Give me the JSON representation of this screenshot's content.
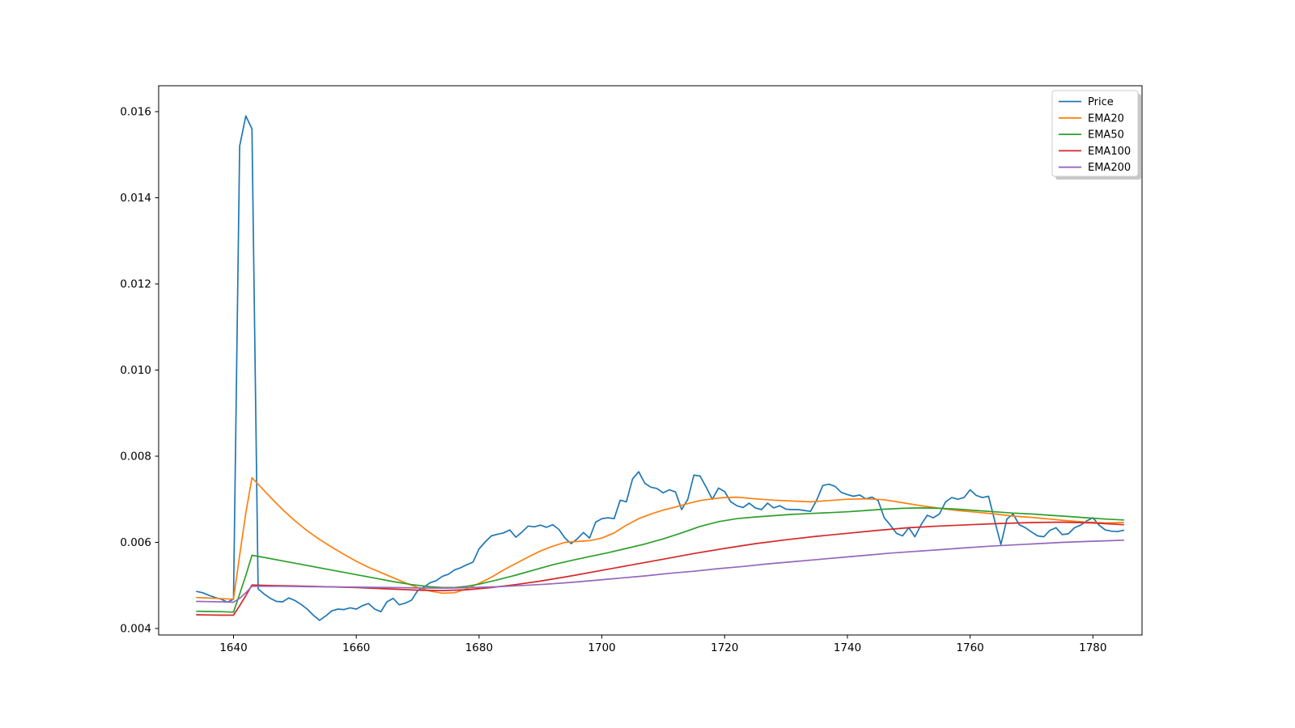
{
  "figure": {
    "background": "#ffffff"
  },
  "chart_data": {
    "type": "line",
    "title": "",
    "xlabel": "",
    "ylabel": "",
    "grid": false,
    "legend_position": "upper right",
    "legend_shadow": true,
    "xlim": [
      1627.8,
      1788.0
    ],
    "ylim": [
      0.00385,
      0.0166
    ],
    "x_ticks": [
      1640,
      1660,
      1680,
      1700,
      1720,
      1740,
      1760,
      1780
    ],
    "x_tick_labels": [
      "1640",
      "1660",
      "1680",
      "1700",
      "1720",
      "1740",
      "1760",
      "1780"
    ],
    "y_ticks": [
      0.004,
      0.006,
      0.008,
      0.01,
      0.012,
      0.014,
      0.016
    ],
    "y_tick_labels": [
      "0.004",
      "0.006",
      "0.008",
      "0.010",
      "0.012",
      "0.014",
      "0.016"
    ],
    "series": [
      {
        "name": "Price",
        "color": "#1f77b4",
        "x_start": 1634,
        "x_step": 1,
        "values": [
          0.00486,
          0.00483,
          0.00477,
          0.00472,
          0.00468,
          0.00461,
          0.00468,
          0.0152,
          0.0159,
          0.0156,
          0.00492,
          0.0048,
          0.0047,
          0.00463,
          0.00462,
          0.00471,
          0.00465,
          0.00456,
          0.00445,
          0.00431,
          0.00419,
          0.00429,
          0.00441,
          0.00445,
          0.00444,
          0.00448,
          0.00445,
          0.00453,
          0.00458,
          0.00445,
          0.00439,
          0.00462,
          0.0047,
          0.00455,
          0.00459,
          0.00466,
          0.00488,
          0.00496,
          0.00506,
          0.00511,
          0.00521,
          0.00526,
          0.00536,
          0.00541,
          0.00548,
          0.00554,
          0.00585,
          0.00601,
          0.00615,
          0.00619,
          0.00622,
          0.00629,
          0.00612,
          0.00624,
          0.00638,
          0.00636,
          0.0064,
          0.00635,
          0.00641,
          0.0063,
          0.0061,
          0.00597,
          0.00608,
          0.00623,
          0.0061,
          0.00647,
          0.00655,
          0.00657,
          0.00655,
          0.00698,
          0.00694,
          0.00747,
          0.00764,
          0.00737,
          0.00728,
          0.00725,
          0.00715,
          0.00722,
          0.00717,
          0.00676,
          0.007,
          0.00756,
          0.00754,
          0.00728,
          0.007,
          0.00726,
          0.00718,
          0.00694,
          0.00685,
          0.00681,
          0.00691,
          0.0068,
          0.00676,
          0.00691,
          0.0068,
          0.00685,
          0.00677,
          0.00676,
          0.00676,
          0.00674,
          0.00672,
          0.00698,
          0.00732,
          0.00735,
          0.0073,
          0.00716,
          0.00711,
          0.00707,
          0.0071,
          0.00701,
          0.00705,
          0.00697,
          0.00657,
          0.0064,
          0.00621,
          0.00615,
          0.00634,
          0.00613,
          0.00641,
          0.00663,
          0.00657,
          0.00666,
          0.00694,
          0.00704,
          0.007,
          0.00704,
          0.00722,
          0.00709,
          0.00704,
          0.00707,
          0.0065,
          0.00595,
          0.00654,
          0.00666,
          0.00641,
          0.00634,
          0.00624,
          0.00615,
          0.00613,
          0.00628,
          0.00634,
          0.00618,
          0.0062,
          0.00634,
          0.0064,
          0.0065,
          0.00657,
          0.0064,
          0.00629,
          0.00626,
          0.00625,
          0.00628
        ]
      },
      {
        "name": "EMA20",
        "color": "#ff7f0e",
        "x": [
          1634,
          1637,
          1640,
          1641,
          1642,
          1643,
          1644,
          1646,
          1648,
          1650,
          1652,
          1654,
          1656,
          1658,
          1660,
          1662,
          1664,
          1666,
          1668,
          1670,
          1672,
          1674,
          1676,
          1678,
          1680,
          1682,
          1684,
          1686,
          1688,
          1690,
          1692,
          1694,
          1696,
          1698,
          1700,
          1702,
          1704,
          1706,
          1708,
          1710,
          1712,
          1714,
          1716,
          1718,
          1720,
          1722,
          1725,
          1728,
          1731,
          1734,
          1737,
          1740,
          1743,
          1746,
          1749,
          1752,
          1755,
          1758,
          1761,
          1764,
          1767,
          1770,
          1773,
          1776,
          1779,
          1782,
          1785
        ],
        "y": [
          0.00472,
          0.0047,
          0.00468,
          0.0057,
          0.00668,
          0.0075,
          0.00735,
          0.00705,
          0.00676,
          0.0065,
          0.00627,
          0.00607,
          0.00589,
          0.00572,
          0.00556,
          0.00542,
          0.0053,
          0.00518,
          0.00506,
          0.00495,
          0.00487,
          0.00482,
          0.00483,
          0.00492,
          0.00505,
          0.00519,
          0.00536,
          0.00551,
          0.00566,
          0.0058,
          0.00591,
          0.006,
          0.00602,
          0.00604,
          0.0061,
          0.00622,
          0.0064,
          0.00655,
          0.00666,
          0.00675,
          0.00682,
          0.0069,
          0.00697,
          0.00701,
          0.00704,
          0.00705,
          0.00701,
          0.00698,
          0.00696,
          0.00694,
          0.00697,
          0.007,
          0.00701,
          0.00699,
          0.00692,
          0.00685,
          0.00679,
          0.00674,
          0.0067,
          0.00666,
          0.00661,
          0.00658,
          0.00654,
          0.0065,
          0.00647,
          0.00645,
          0.00646
        ]
      },
      {
        "name": "EMA50",
        "color": "#2ca02c",
        "x": [
          1634,
          1638,
          1640,
          1641,
          1642,
          1643,
          1645,
          1648,
          1651,
          1654,
          1657,
          1660,
          1663,
          1666,
          1669,
          1672,
          1674,
          1676,
          1678,
          1680,
          1683,
          1686,
          1689,
          1692,
          1695,
          1698,
          1701,
          1704,
          1707,
          1710,
          1713,
          1716,
          1719,
          1722,
          1725,
          1728,
          1731,
          1734,
          1737,
          1740,
          1743,
          1746,
          1749,
          1752,
          1755,
          1758,
          1761,
          1764,
          1767,
          1770,
          1773,
          1776,
          1779,
          1782,
          1785
        ],
        "y": [
          0.0044,
          0.00439,
          0.00438,
          0.0048,
          0.00523,
          0.0057,
          0.00565,
          0.00557,
          0.00549,
          0.00541,
          0.00533,
          0.00525,
          0.00517,
          0.00509,
          0.00502,
          0.00497,
          0.00495,
          0.00495,
          0.00498,
          0.00503,
          0.00513,
          0.00524,
          0.00536,
          0.00548,
          0.00558,
          0.00567,
          0.00576,
          0.00586,
          0.00596,
          0.00608,
          0.00622,
          0.00637,
          0.00648,
          0.00655,
          0.00659,
          0.00662,
          0.00665,
          0.00667,
          0.00669,
          0.00671,
          0.00674,
          0.00677,
          0.00679,
          0.0068,
          0.00679,
          0.00677,
          0.00674,
          0.00671,
          0.00668,
          0.00666,
          0.00663,
          0.0066,
          0.00657,
          0.00654,
          0.00652
        ]
      },
      {
        "name": "EMA100",
        "color": "#d62728",
        "x": [
          1634,
          1638,
          1640,
          1641,
          1642,
          1643,
          1646,
          1650,
          1655,
          1660,
          1665,
          1670,
          1674,
          1678,
          1682,
          1686,
          1690,
          1695,
          1700,
          1705,
          1710,
          1715,
          1720,
          1725,
          1730,
          1735,
          1740,
          1745,
          1750,
          1755,
          1760,
          1765,
          1770,
          1775,
          1780,
          1785
        ],
        "y": [
          0.00432,
          0.00431,
          0.00431,
          0.00453,
          0.00476,
          0.00501,
          0.005,
          0.00499,
          0.00497,
          0.00495,
          0.00492,
          0.00489,
          0.00488,
          0.0049,
          0.00495,
          0.00502,
          0.0051,
          0.00522,
          0.00535,
          0.00548,
          0.00561,
          0.00574,
          0.00586,
          0.00597,
          0.00606,
          0.00614,
          0.00621,
          0.00628,
          0.00634,
          0.00638,
          0.00641,
          0.00644,
          0.00646,
          0.00647,
          0.00645,
          0.00641
        ]
      },
      {
        "name": "EMA200",
        "color": "#9467bd",
        "x": [
          1634,
          1638,
          1640,
          1641,
          1642,
          1643,
          1648,
          1654,
          1660,
          1666,
          1671,
          1675,
          1679,
          1683,
          1687,
          1691,
          1695,
          1699,
          1703,
          1707,
          1711,
          1715,
          1719,
          1723,
          1727,
          1731,
          1735,
          1739,
          1743,
          1747,
          1751,
          1755,
          1759,
          1763,
          1767,
          1771,
          1775,
          1779,
          1783,
          1785
        ],
        "y": [
          0.00463,
          0.00462,
          0.00461,
          0.0047,
          0.00483,
          0.00498,
          0.00498,
          0.00497,
          0.00496,
          0.00495,
          0.00494,
          0.00494,
          0.00495,
          0.00497,
          0.005,
          0.00503,
          0.00507,
          0.00512,
          0.00517,
          0.00522,
          0.00528,
          0.00533,
          0.00539,
          0.00544,
          0.0055,
          0.00555,
          0.0056,
          0.00565,
          0.0057,
          0.00575,
          0.00579,
          0.00583,
          0.00587,
          0.00591,
          0.00594,
          0.00597,
          0.006,
          0.00602,
          0.00604,
          0.00605
        ]
      }
    ],
    "legend": {
      "entries": [
        "Price",
        "EMA20",
        "EMA50",
        "EMA100",
        "EMA200"
      ],
      "border_color": "#cccccc",
      "shadow_color": "#c8c8c8",
      "background": "#ffffff"
    }
  }
}
